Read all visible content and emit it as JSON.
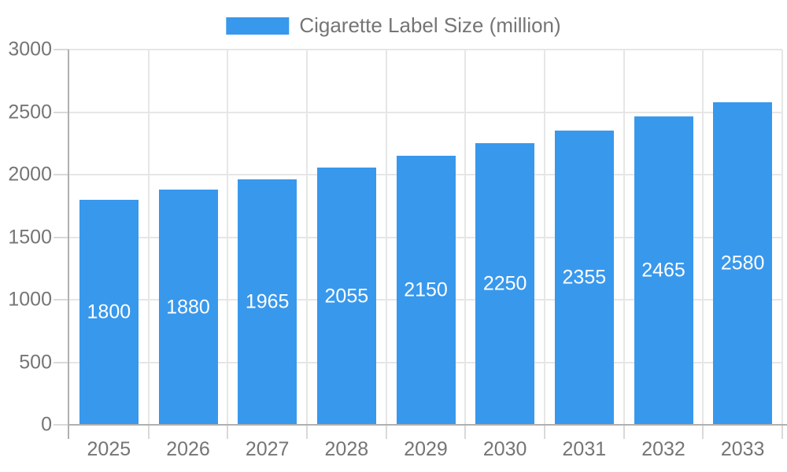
{
  "chart_data": {
    "type": "bar",
    "title": "Cigarette Label Size (million)",
    "legend_label": "Cigarette Label Size (million)",
    "categories": [
      "2025",
      "2026",
      "2027",
      "2028",
      "2029",
      "2030",
      "2031",
      "2032",
      "2033"
    ],
    "values": [
      1800,
      1880,
      1965,
      2055,
      2150,
      2250,
      2355,
      2465,
      2580
    ],
    "value_labels": [
      "1800",
      "1880",
      "1965",
      "2055",
      "2150",
      "2250",
      "2355",
      "2465",
      "2580"
    ],
    "xlabel": "",
    "ylabel": "",
    "ylim": [
      0,
      3000
    ],
    "yticks": [
      0,
      500,
      1000,
      1500,
      2000,
      2500,
      3000
    ],
    "grid": true,
    "legend_position": "top-center",
    "value_label_position": "inside-middle",
    "colors": {
      "bar": "#3898EC",
      "axis_text": "#757575",
      "legend_text": "#757575",
      "value_label_text": "#FFFFFF",
      "gridline": "#E6E6E6",
      "tick": "#D9D9D9",
      "axis_line": "#B0B0B0",
      "background": "#FFFFFF"
    }
  }
}
